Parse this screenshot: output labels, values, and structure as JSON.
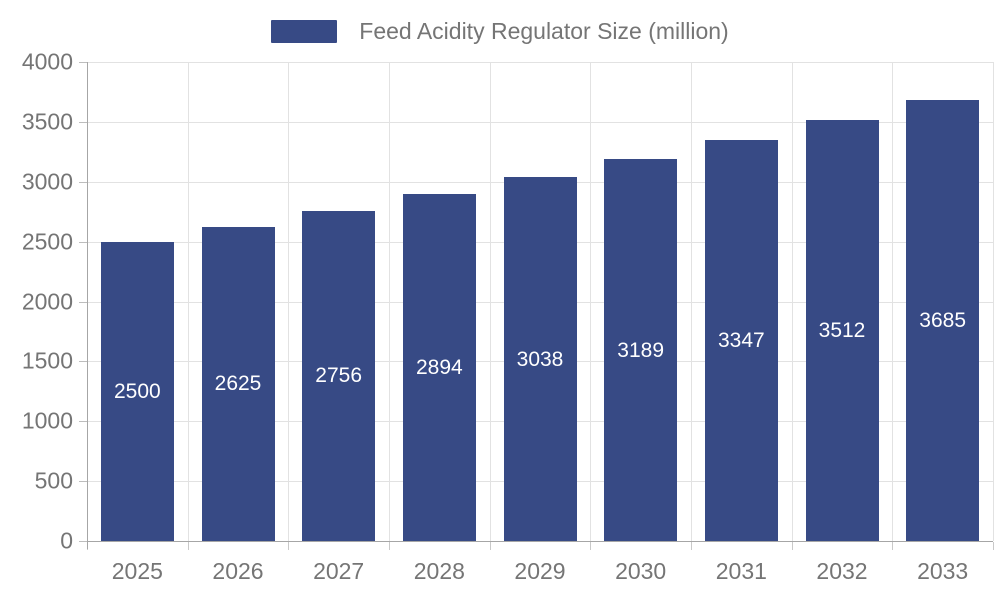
{
  "legend": {
    "label": "Feed Acidity Regulator Size (million)",
    "swatch_color": "#374a85"
  },
  "chart_data": {
    "type": "bar",
    "title": "",
    "xlabel": "",
    "ylabel": "",
    "categories": [
      "2025",
      "2026",
      "2027",
      "2028",
      "2029",
      "2030",
      "2031",
      "2032",
      "2033"
    ],
    "series": [
      {
        "name": "Feed Acidity Regulator Size (million)",
        "values": [
          2500,
          2625,
          2756,
          2894,
          3038,
          3189,
          3347,
          3512,
          3685
        ]
      }
    ],
    "data_labels_shown": true,
    "ylim": [
      0,
      4000
    ],
    "y_ticks": [
      0,
      500,
      1000,
      1500,
      2000,
      2500,
      3000,
      3500,
      4000
    ],
    "grid": true,
    "legend_position": "top"
  },
  "colors": {
    "bar_fill": "#374a85",
    "bar_label_text": "#ffffff",
    "axis_text": "#757575",
    "gridline": "#e2e2e2",
    "axis_line": "#a6a6a6",
    "background": "#ffffff"
  }
}
